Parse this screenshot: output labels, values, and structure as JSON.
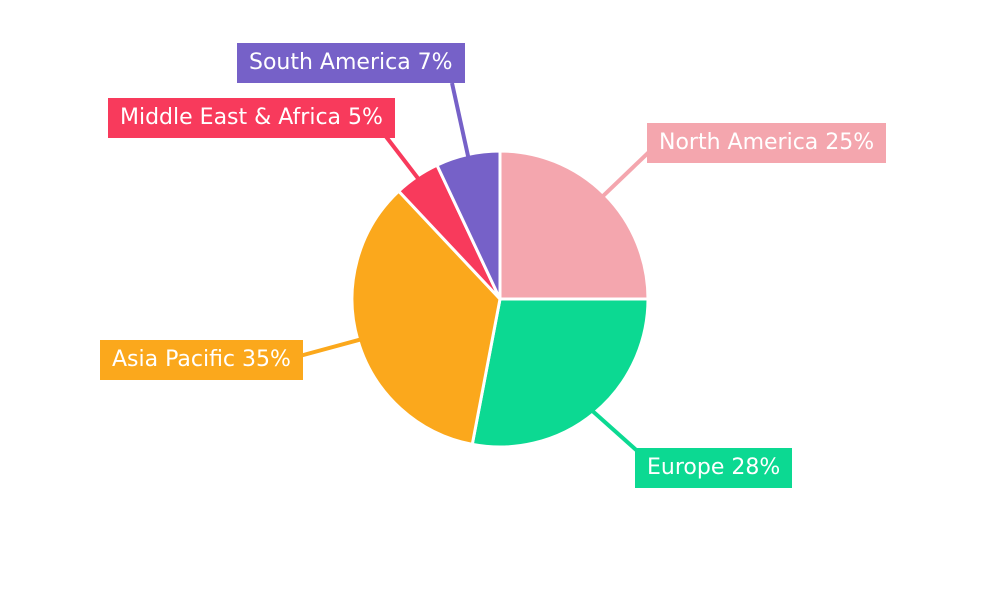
{
  "page": {
    "background": "#ffffff"
  },
  "chart_data": {
    "type": "pie",
    "title": "",
    "legend_position": "none",
    "labels_style": "external colored callout boxes with leader lines, white text",
    "start_angle": "12 o'clock, clockwise",
    "total": 100,
    "slices": [
      {
        "label": "North America",
        "value": 25,
        "pct_text": "North America 25%",
        "color": "#F4A6AE"
      },
      {
        "label": "Europe",
        "value": 28,
        "pct_text": "Europe 28%",
        "color": "#0CD992"
      },
      {
        "label": "Asia Pacific",
        "value": 35,
        "pct_text": "Asia Pacific 35%",
        "color": "#FBA81C"
      },
      {
        "label": "Middle East & Africa",
        "value": 5,
        "pct_text": "Middle East & Africa 5%",
        "color": "#F83A5C"
      },
      {
        "label": "South America",
        "value": 7,
        "pct_text": "South America 7%",
        "color": "#7661C8"
      }
    ]
  }
}
